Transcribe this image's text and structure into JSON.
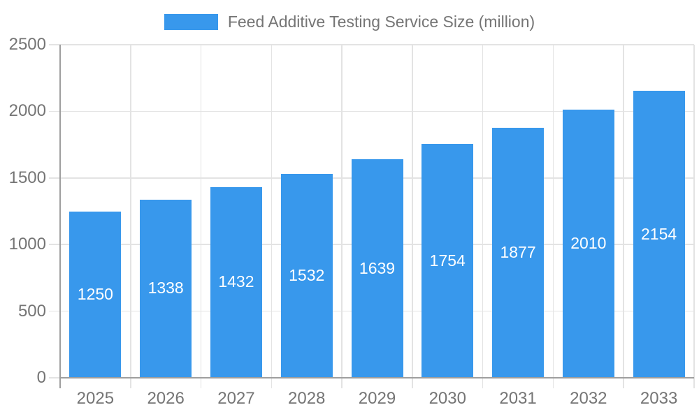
{
  "legend": {
    "label": "Feed Additive Testing Service Size (million)"
  },
  "chart_data": {
    "type": "bar",
    "title": "Feed Additive Testing Service Size (million)",
    "categories": [
      "2025",
      "2026",
      "2027",
      "2028",
      "2029",
      "2030",
      "2031",
      "2032",
      "2033"
    ],
    "values": [
      1250,
      1338,
      1432,
      1532,
      1639,
      1754,
      1877,
      2010,
      2154
    ],
    "xlabel": "",
    "ylabel": "",
    "ylim": [
      0,
      2500
    ],
    "yticks": [
      0,
      500,
      1000,
      1500,
      2000,
      2500
    ],
    "grid": true,
    "legend_position": "top",
    "bar_value_labels": true,
    "colors": {
      "bar": "#3898ec",
      "bar_label": "#ffffff",
      "axis_text": "#757575",
      "grid_line": "#e3e3e3",
      "axis_line": "#9e9e9e",
      "background": "#ffffff"
    }
  }
}
